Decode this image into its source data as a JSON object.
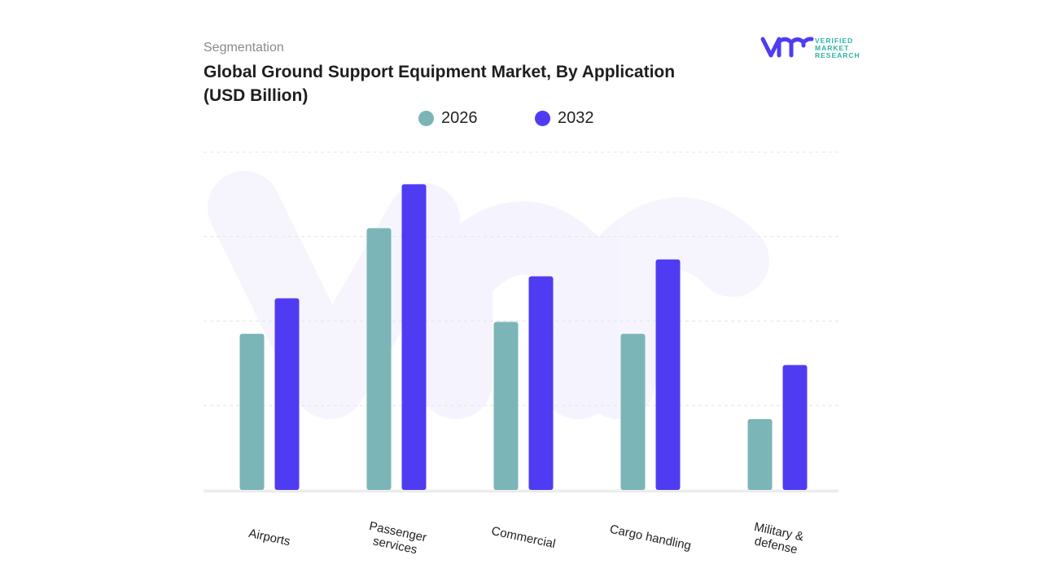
{
  "header": {
    "segment_label": "Segmentation",
    "title": "Global Ground Support Equipment Market, By Application (USD Billion)"
  },
  "brand": {
    "line1": "VERIFIED",
    "line2": "MARKET",
    "line3": "RESEARCH",
    "color": "#4f3cf2",
    "text_color": "#2bb3a4"
  },
  "chart_data": {
    "type": "bar",
    "title": "Global Ground Support Equipment Market, By Application (USD Billion)",
    "xlabel": "",
    "ylabel": "",
    "categories": [
      "Airports",
      "Passenger services",
      "Commercial",
      "Cargo handling",
      "Military & defense"
    ],
    "category_lines": [
      [
        "Airports"
      ],
      [
        "Passenger",
        "services"
      ],
      [
        "Commercial"
      ],
      [
        "Cargo handling"
      ],
      [
        "Military &",
        "defense"
      ]
    ],
    "series": [
      {
        "name": "2026",
        "color": "#7bb5b8",
        "values": [
          1.85,
          3.1,
          1.99,
          1.85,
          0.84
        ]
      },
      {
        "name": "2032",
        "color": "#4f3cf2",
        "values": [
          2.27,
          3.62,
          2.53,
          2.73,
          1.48
        ]
      }
    ],
    "ylim": [
      0,
      4
    ],
    "y_axis_labels_shown": false,
    "grid": true,
    "legend": "top-center",
    "x_tick_rotation": 12
  }
}
